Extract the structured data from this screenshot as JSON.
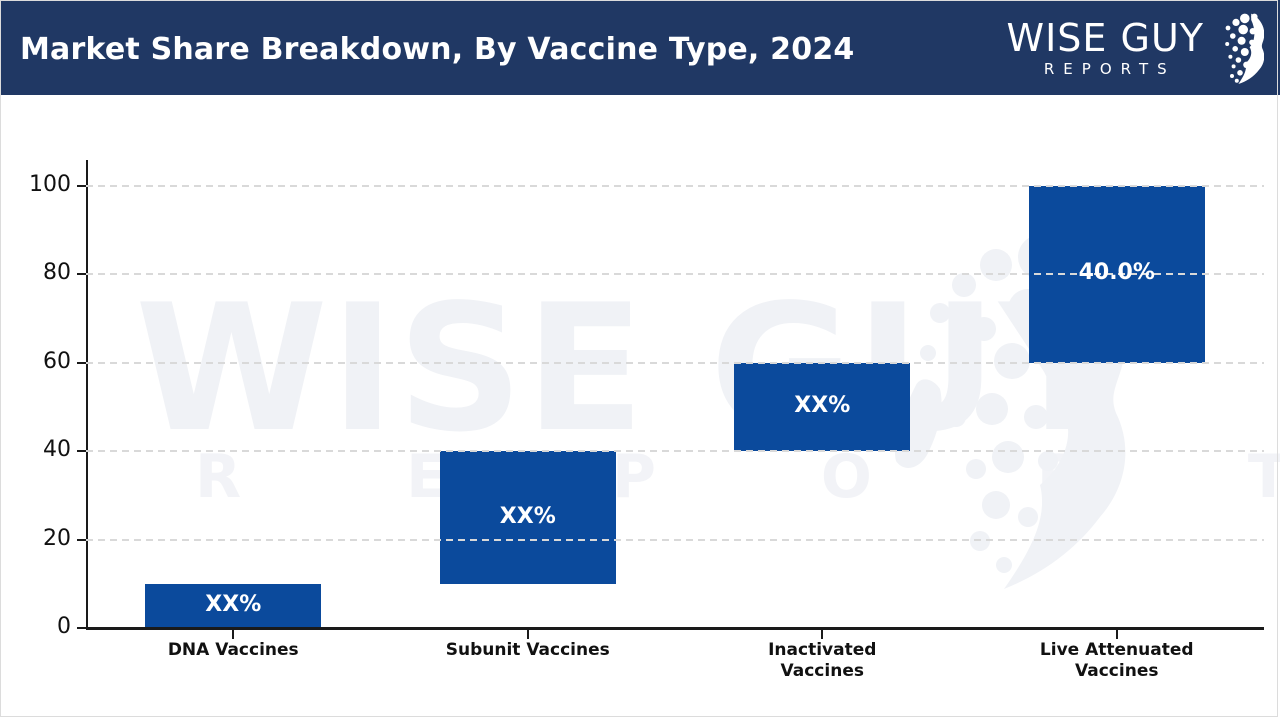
{
  "header": {
    "title": "Market Share Breakdown, By Vaccine Type, 2024",
    "logo": {
      "name": "WISE GUY",
      "subname": "REPORTS",
      "face_icon": "dotted-face-profile"
    }
  },
  "watermark": {
    "line1": "WISE GUY",
    "line2": "R E P O R T S",
    "face_icon": "dotted-face-profile"
  },
  "colors": {
    "header_bg": "#203864",
    "bar": "#0b4a9c",
    "grid": "#d9d9d9",
    "axis": "#1a1a1a",
    "bar_label": "#ffffff",
    "watermark": "#f0f2f6",
    "page_border": "#dcdcdc"
  },
  "chart_data": {
    "type": "bar",
    "subtype": "waterfall",
    "title": "Market Share Breakdown, By Vaccine Type, 2024",
    "categories": [
      "DNA Vaccines",
      "Subunit Vaccines",
      "Inactivated\nVaccines",
      "Live Attenuated\nVaccines"
    ],
    "series": [
      {
        "name": "Market Share",
        "segments": [
          {
            "category": "DNA Vaccines",
            "start": 0,
            "end": 10,
            "label": "XX%"
          },
          {
            "category": "Subunit Vaccines",
            "start": 10,
            "end": 40,
            "label": "XX%"
          },
          {
            "category": "Inactivated Vaccines",
            "start": 40,
            "end": 60,
            "label": "XX%"
          },
          {
            "category": "Live Attenuated Vaccines",
            "start": 60,
            "end": 100,
            "label": "40.0%"
          }
        ]
      }
    ],
    "xlabel": "",
    "ylabel": "",
    "yticks": [
      0,
      20,
      40,
      60,
      80,
      100
    ],
    "ylim": [
      0,
      106
    ],
    "grid": "horizontal-dashed",
    "legend": "none"
  }
}
